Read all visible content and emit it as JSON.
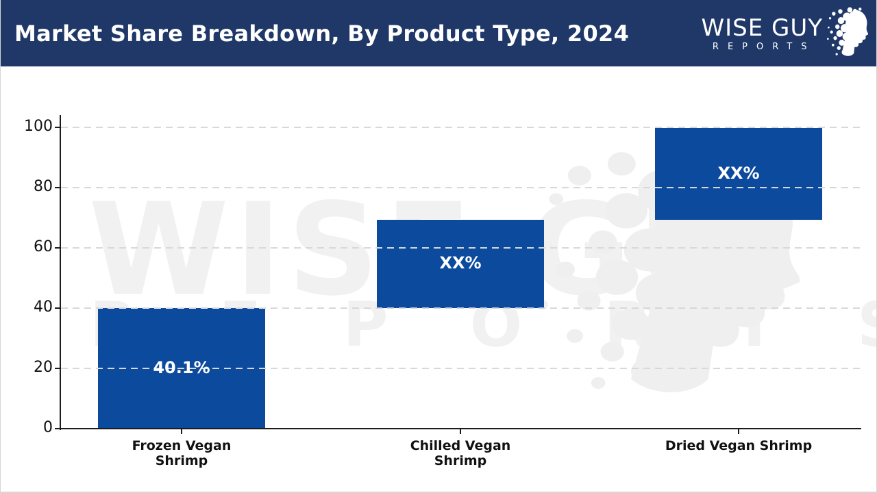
{
  "header": {
    "title": "Market Share Breakdown, By Product Type, 2024",
    "logo": {
      "name": "WISE GUY",
      "subtitle": "REPORTS"
    }
  },
  "watermark": {
    "line1": "WISE GU",
    "line2": "R E P O R T S"
  },
  "chart_data": {
    "type": "bar",
    "subtype": "waterfall-stacked",
    "title": "Market Share Breakdown, By Product Type, 2024",
    "categories": [
      "Frozen Vegan Shrimp",
      "Chilled Vegan Shrimp",
      "Dried Vegan Shrimp"
    ],
    "category_label_lines": [
      [
        "Frozen Vegan",
        "Shrimp"
      ],
      [
        "Chilled Vegan",
        "Shrimp"
      ],
      [
        "Dried Vegan Shrimp"
      ]
    ],
    "segments": [
      {
        "category": "Frozen Vegan Shrimp",
        "start": 0,
        "end": 40.1,
        "value_label": "40.1%"
      },
      {
        "category": "Chilled Vegan Shrimp",
        "start": 40.1,
        "end": 69.4,
        "value_label": "XX%"
      },
      {
        "category": "Dried Vegan Shrimp",
        "start": 69.4,
        "end": 99.8,
        "value_label": "XX%"
      }
    ],
    "xlabel": "",
    "ylabel": "",
    "ylim": [
      0,
      100
    ],
    "yticks": [
      0,
      20,
      40,
      60,
      80,
      100
    ],
    "grid": {
      "axis": "y",
      "style": "dashed",
      "on_top": true
    },
    "legend": "none"
  },
  "colors": {
    "header_bg": "#1f3868",
    "header_text": "#ffffff",
    "bar": "#0c4a9e",
    "value_label": "#ffffff",
    "grid": "#d8d8d8",
    "axis": "#1b1b1b",
    "tick_text": "#111111",
    "watermark": "#f1f1f1",
    "page_border": "#d6d6d6",
    "background": "#ffffff"
  }
}
